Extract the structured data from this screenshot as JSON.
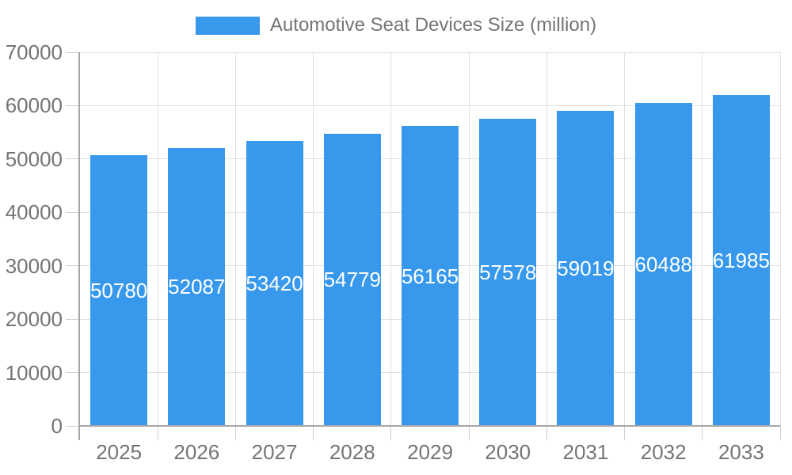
{
  "legend": {
    "label": "Automotive Seat Devices Size (million)"
  },
  "chart_data": {
    "type": "bar",
    "title": "Automotive Seat Devices Size (million)",
    "categories": [
      "2025",
      "2026",
      "2027",
      "2028",
      "2029",
      "2030",
      "2031",
      "2032",
      "2033"
    ],
    "values": [
      50780,
      52087,
      53420,
      54779,
      56165,
      57578,
      59019,
      60488,
      61985
    ],
    "series": [
      {
        "name": "Automotive Seat Devices Size (million)",
        "values": [
          50780,
          52087,
          53420,
          54779,
          56165,
          57578,
          59019,
          60488,
          61985
        ]
      }
    ],
    "xlabel": "",
    "ylabel": "",
    "ylim": [
      0,
      70000
    ],
    "yticks": [
      0,
      10000,
      20000,
      30000,
      40000,
      50000,
      60000,
      70000
    ],
    "grid": true,
    "legend_position": "top",
    "bar_label_position": "middle",
    "colors": {
      "bar": "#3899EC",
      "grid": "#e0e0e0",
      "axis": "#a6a6a6",
      "tick": "#d0d0d0",
      "text": "#757575",
      "value_label": "#ffffff",
      "background": "#ffffff"
    }
  }
}
